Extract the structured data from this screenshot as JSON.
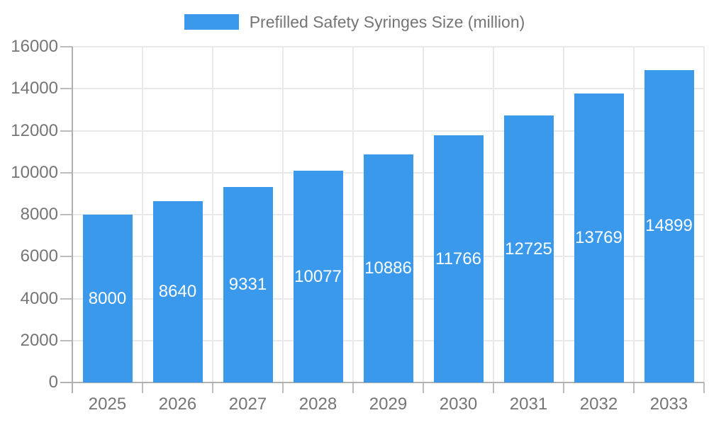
{
  "legend": {
    "label": "Prefilled Safety Syringes Size (million)"
  },
  "chart_data": {
    "type": "bar",
    "title": "Prefilled Safety Syringes Size (million)",
    "categories": [
      "2025",
      "2026",
      "2027",
      "2028",
      "2029",
      "2030",
      "2031",
      "2032",
      "2033"
    ],
    "values": [
      8000,
      8640,
      9331,
      10077,
      10886,
      11766,
      12725,
      13769,
      14899
    ],
    "series_name": "Prefilled Safety Syringes Size (million)",
    "xlabel": "",
    "ylabel": "",
    "ylim": [
      0,
      16000
    ],
    "y_ticks": [
      0,
      2000,
      4000,
      6000,
      8000,
      10000,
      12000,
      14000,
      16000
    ],
    "grid": true,
    "legend_position": "top-center",
    "bar_labels_visible": true,
    "colors": {
      "bar": "#3B99EC",
      "bar_label": "#FFFFFF",
      "grid": "#E9E9E9",
      "axis": "#B0B0B0",
      "tick": "#BDBDBD",
      "text": "#757575",
      "background": "#FFFFFF"
    }
  }
}
